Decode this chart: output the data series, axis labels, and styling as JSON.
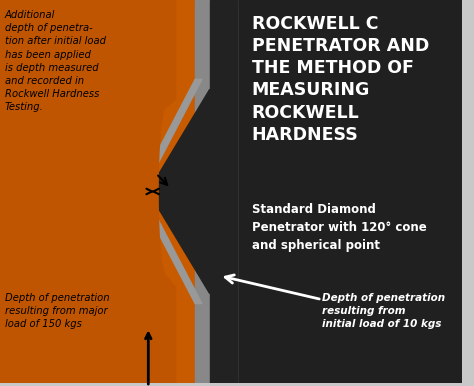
{
  "bg_color": "#c8c8c8",
  "orange_color": "#c85a00",
  "dark_bg": "#1a1a1a",
  "gray_side": "#888888",
  "white": "#ffffff",
  "black": "#000000",
  "title_lines": [
    "ROCKWELL C",
    "PENETRATOR AND",
    "THE METHOD OF",
    "MEASURING",
    "ROCKWELL",
    "HARDNESS"
  ],
  "subtitle": "Standard Diamond\nPenetrator with 120° cone\nand spherical point",
  "label_top": "Additional\ndepth of penetra-\ntion after initial load\nhas been applied\nis depth measured\nand recorded in\nRockwell Hardness\nTesting.",
  "label_bottom_left": "Depth of penetration\nresulting from major\nload of 150 kgs",
  "label_right": "Depth of penetration\nresulting from\ninitial load of 10 kgs"
}
